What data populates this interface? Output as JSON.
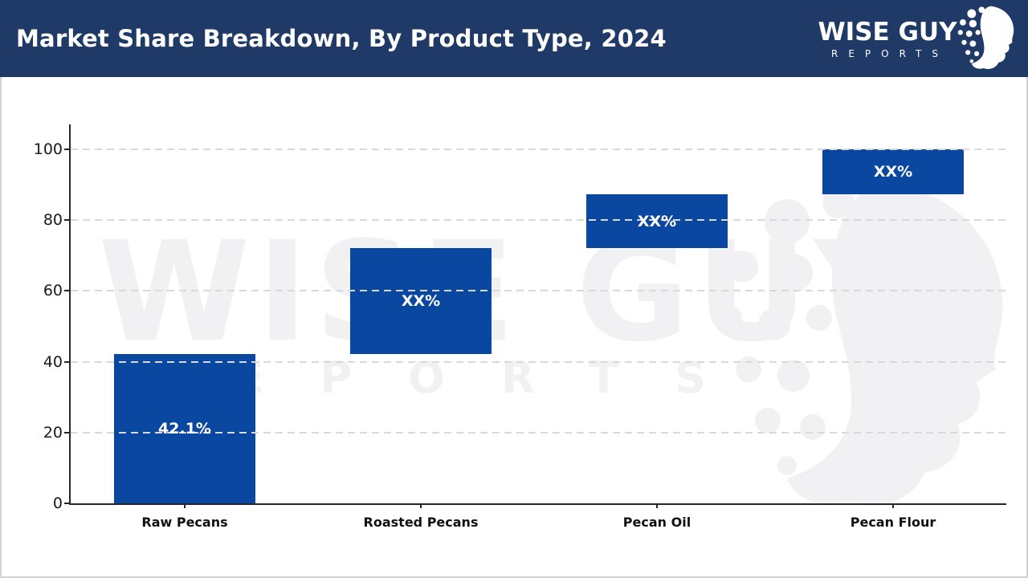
{
  "header": {
    "title": "Market Share Breakdown, By Product Type, 2024",
    "logo": {
      "line1": "WISE GUY",
      "line2": "REPORTS",
      "icon": "dotted-face-profile"
    }
  },
  "watermark": {
    "line1": "WISE GUY",
    "line2": "REPORTS",
    "icon": "dotted-face-profile"
  },
  "chart_data": {
    "type": "bar",
    "subtype": "waterfall",
    "title": "Market Share Breakdown, By Product Type, 2024",
    "categories": [
      "Raw Pecans",
      "Roasted Pecans",
      "Pecan Oil",
      "Pecan Flour"
    ],
    "segments": [
      {
        "category": "Raw Pecans",
        "start": 0,
        "end": 42.1,
        "label": "42.1%"
      },
      {
        "category": "Roasted Pecans",
        "start": 42.1,
        "end": 72.1,
        "label": "XX%"
      },
      {
        "category": "Pecan Oil",
        "start": 72.1,
        "end": 87.3,
        "label": "XX%"
      },
      {
        "category": "Pecan Flour",
        "start": 87.3,
        "end": 100,
        "label": "XX%"
      }
    ],
    "xlabel": "",
    "ylabel": "",
    "ylim": [
      0,
      100
    ],
    "yticks": [
      0,
      20,
      40,
      60,
      80,
      100
    ],
    "grid": "horizontal-dashed",
    "legend": "none",
    "colors": {
      "bar": "#0a47a1",
      "bar_label": "#ffffff",
      "grid": "#d9d9d9",
      "axis": "#262626",
      "tick_label": "#1a1a1a",
      "header_bg": "#1f3a66",
      "header_text": "#ffffff",
      "watermark": "#f1f1f4"
    }
  }
}
